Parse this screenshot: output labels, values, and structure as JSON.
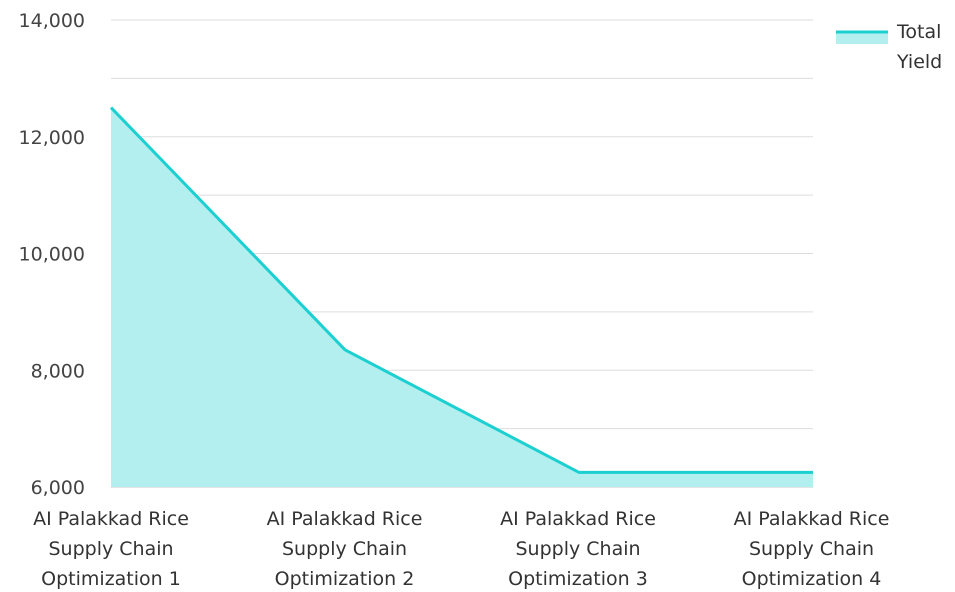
{
  "chart_data": {
    "type": "area",
    "categories": [
      [
        "AI Palakkad Rice",
        "Supply Chain",
        "Optimization 1"
      ],
      [
        "AI Palakkad Rice",
        "Supply Chain",
        "Optimization 2"
      ],
      [
        "AI Palakkad Rice",
        "Supply Chain",
        "Optimization 3"
      ],
      [
        "AI Palakkad Rice",
        "Supply Chain",
        "Optimization 4"
      ]
    ],
    "series": [
      {
        "name": "Total Yield",
        "values": [
          12500,
          8350,
          6250,
          6250
        ]
      }
    ],
    "yticks": [
      "6,000",
      "8,000",
      "10,000",
      "12,000",
      "14,000"
    ],
    "ylim": [
      6000,
      14000
    ],
    "legend": {
      "position": "top-right",
      "label_lines": [
        "Total",
        "Yield"
      ]
    },
    "grid": true,
    "colors": {
      "line": "#1ccfd1",
      "fill": "#b3efee",
      "grid": "#dddddd",
      "axis": "#c8c8c8"
    }
  }
}
